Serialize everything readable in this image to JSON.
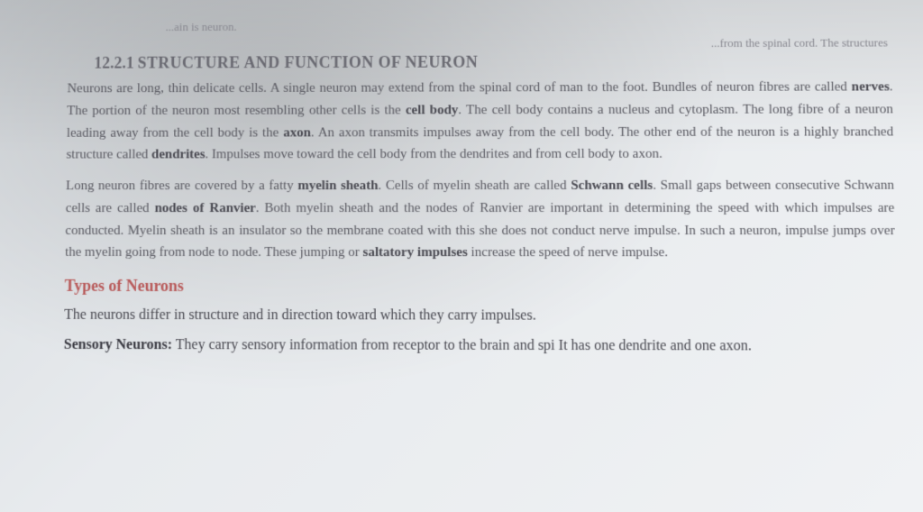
{
  "partial_top_left": "...ain is neuron.",
  "partial_top_right": "...from the spinal cord. The structures",
  "section": {
    "number": "12.2.1",
    "title": "STRUCTURE AND FUNCTION OF NEURON"
  },
  "paragraph1": {
    "part1": "Neurons are long, thin delicate cells. A single neuron may extend from the spinal cord of man to the foot. Bundles of neuron fibres are called ",
    "term1": "nerves",
    "part2": ". The portion of the neuron most resembling other cells is the ",
    "term2": "cell body",
    "part3": ". The cell body contains a nucleus and cytoplasm. The long fibre of a neuron leading away from the cell body is the ",
    "term3": "axon",
    "part4": ". An axon transmits impulses away from the cell body. The other end of the neuron is a highly branched structure called ",
    "term4": "dendrites",
    "part5": ". Impulses move toward the cell body from the dendrites and from cell body to axon."
  },
  "paragraph2": {
    "part1": "Long neuron fibres are covered by a fatty ",
    "term1": "myelin sheath",
    "part2": ". Cells of myelin sheath are called ",
    "term2": "Schwann cells",
    "part3": ". Small gaps between consecutive Schwann cells are called ",
    "term3": "nodes of Ranvier",
    "part4": ". Both myelin sheath and the nodes of Ranvier are important in determining the speed with which impulses are conducted. Myelin sheath is an insulator so the membrane coated with this she does not conduct nerve impulse. In such a neuron, impulse jumps over the myelin going from node to node. These jumping or ",
    "term4": "saltatory impulses",
    "part5": " increase the speed of nerve impulse."
  },
  "types_heading": "Types of Neurons",
  "types_intro": "The neurons differ in structure and in direction toward which they carry impulses.",
  "sensory": {
    "label": "Sensory Neurons:",
    "text": " They carry sensory information from receptor to the brain and spi It has one dendrite and one axon."
  },
  "colors": {
    "background_start": "#d8dce0",
    "background_end": "#f0f2f4",
    "text_body": "#5a5a62",
    "text_bold": "#4a4a52",
    "heading_red": "#b85a5a",
    "section_heading": "#6a6a72"
  },
  "typography": {
    "body_fontsize": 15,
    "heading_fontsize": 18,
    "subheading_fontsize": 18,
    "line_height": 1.65
  }
}
